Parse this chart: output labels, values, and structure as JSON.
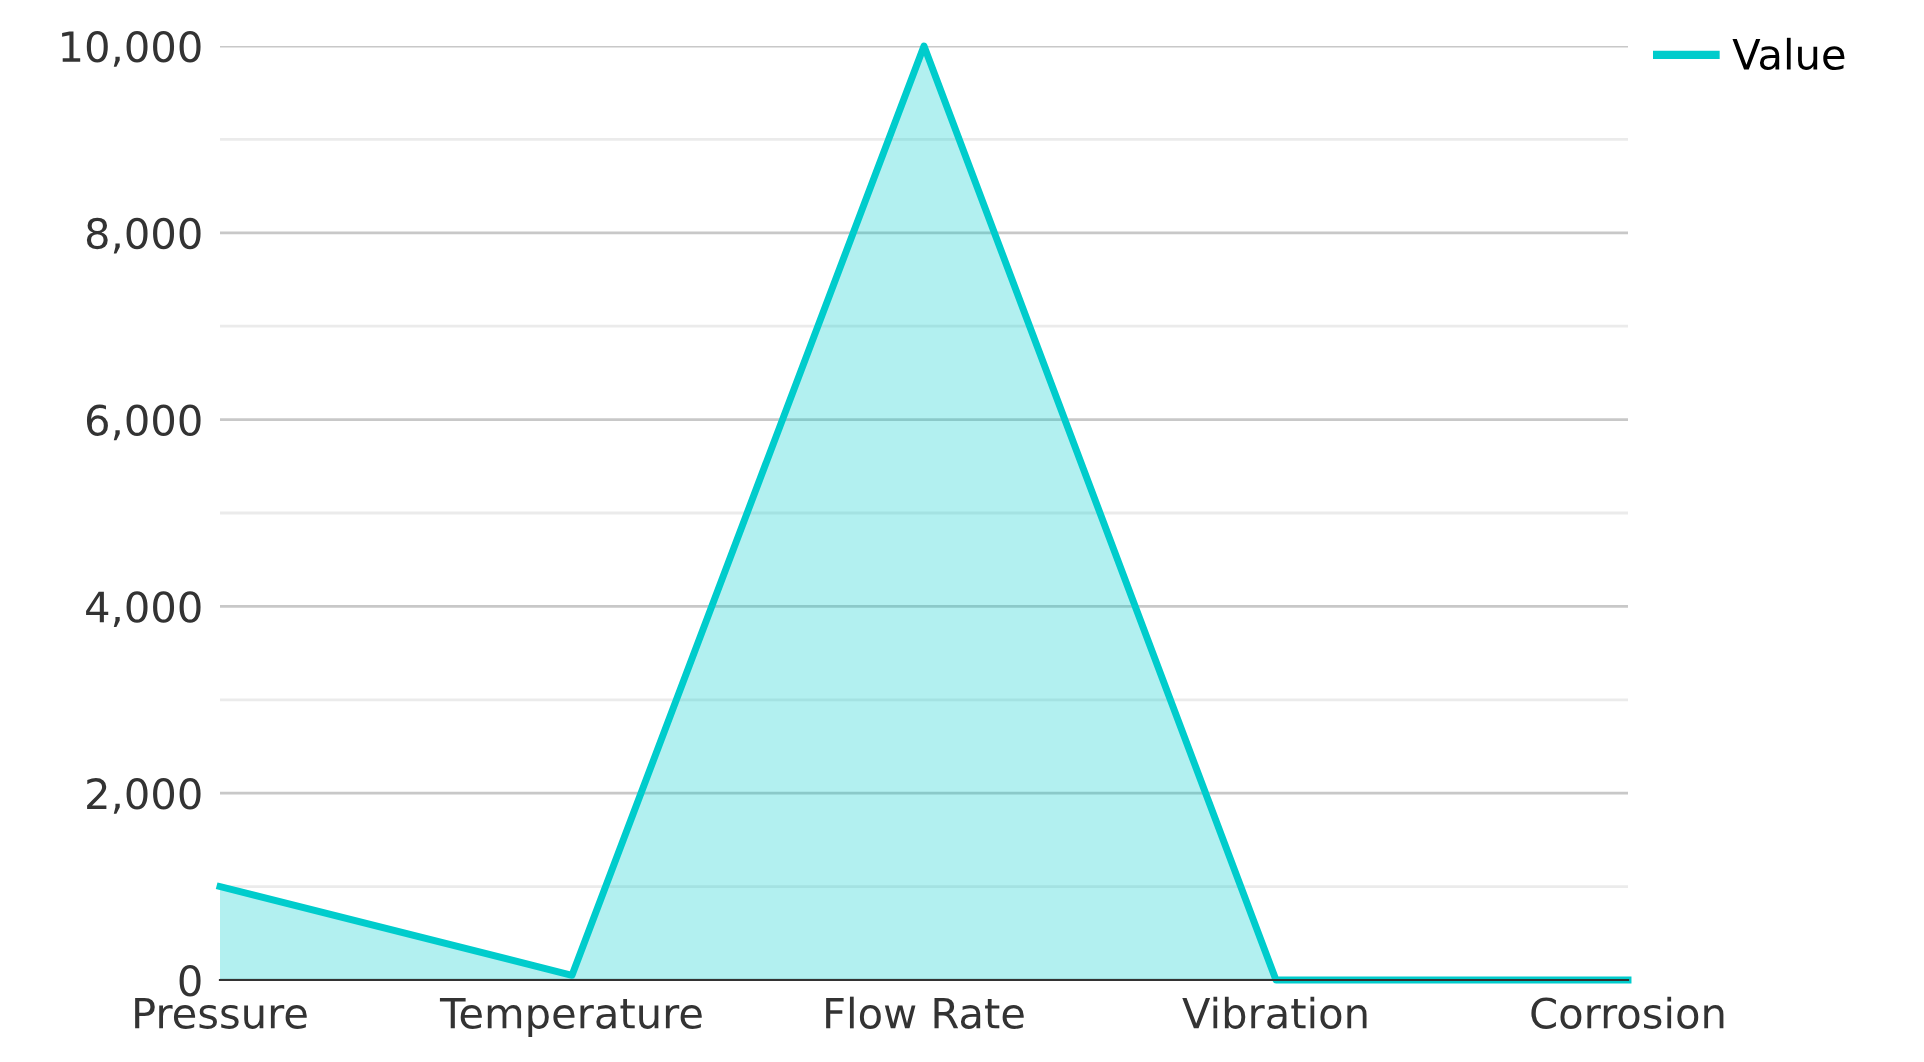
{
  "chart_data": {
    "type": "area",
    "categories": [
      "Pressure",
      "Temperature",
      "Flow Rate",
      "Vibration",
      "Corrosion"
    ],
    "series": [
      {
        "name": "Value",
        "color": "#00cccc",
        "values": [
          1000,
          50,
          10000,
          0,
          0
        ]
      }
    ],
    "ylim": [
      0,
      10000
    ],
    "yticks": [
      {
        "value": 0,
        "label": "0"
      },
      {
        "value": 1000,
        "label": null
      },
      {
        "value": 2000,
        "label": "2,000"
      },
      {
        "value": 3000,
        "label": null
      },
      {
        "value": 4000,
        "label": "4,000"
      },
      {
        "value": 5000,
        "label": null
      },
      {
        "value": 6000,
        "label": "6,000"
      },
      {
        "value": 7000,
        "label": null
      },
      {
        "value": 8000,
        "label": "8,000"
      },
      {
        "value": 9000,
        "label": null
      },
      {
        "value": 10000,
        "label": "10,000"
      }
    ],
    "grid": "y",
    "legend": "top right",
    "marker": "none",
    "line_style": "solid"
  }
}
